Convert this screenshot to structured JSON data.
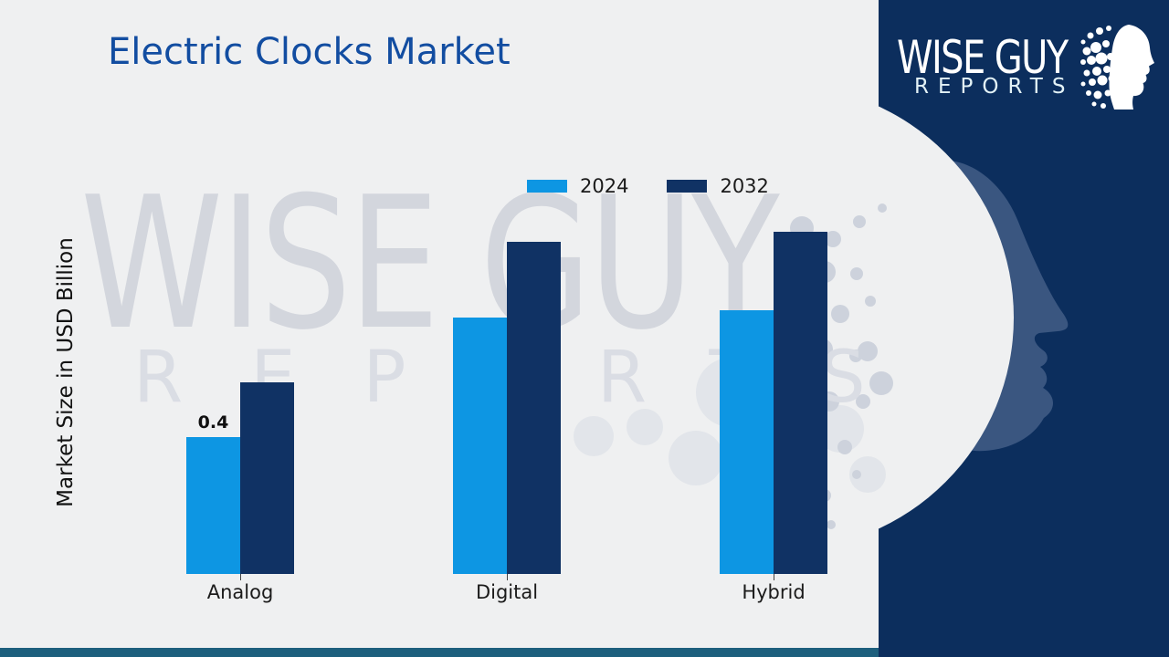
{
  "page": {
    "background": "#eff0f1"
  },
  "title": {
    "text": "Electric Clocks Market",
    "color": "#124da1"
  },
  "y_axis_label": "Market Size in USD Billion",
  "chart_data": {
    "type": "bar",
    "title": "Electric Clocks Market",
    "xlabel": "",
    "ylabel": "Market Size in USD Billion",
    "categories": [
      "Analog",
      "Digital",
      "Hybrid"
    ],
    "series": [
      {
        "name": "2024",
        "color": "#0d96e3",
        "values": [
          0.4,
          0.75,
          0.77
        ]
      },
      {
        "name": "2032",
        "color": "#103264",
        "values": [
          0.56,
          0.97,
          1.0
        ]
      }
    ],
    "value_labels": [
      {
        "category": "Analog",
        "series": "2024",
        "text": "0.4"
      }
    ],
    "ylim": [
      0,
      1.08
    ],
    "grid": false,
    "legend_position": "top-center"
  },
  "watermark": {
    "line1": "WISE GUY",
    "line2": "REPORTS"
  },
  "brand": {
    "name_line1": "WISE GUY",
    "name_line2": "REPORTS",
    "logo_text_color": "#ffffff",
    "panel_color": "#0c2e5d",
    "face_silhouette_color": "#3a5680",
    "accent_bar_color": "#1d5f7d"
  }
}
